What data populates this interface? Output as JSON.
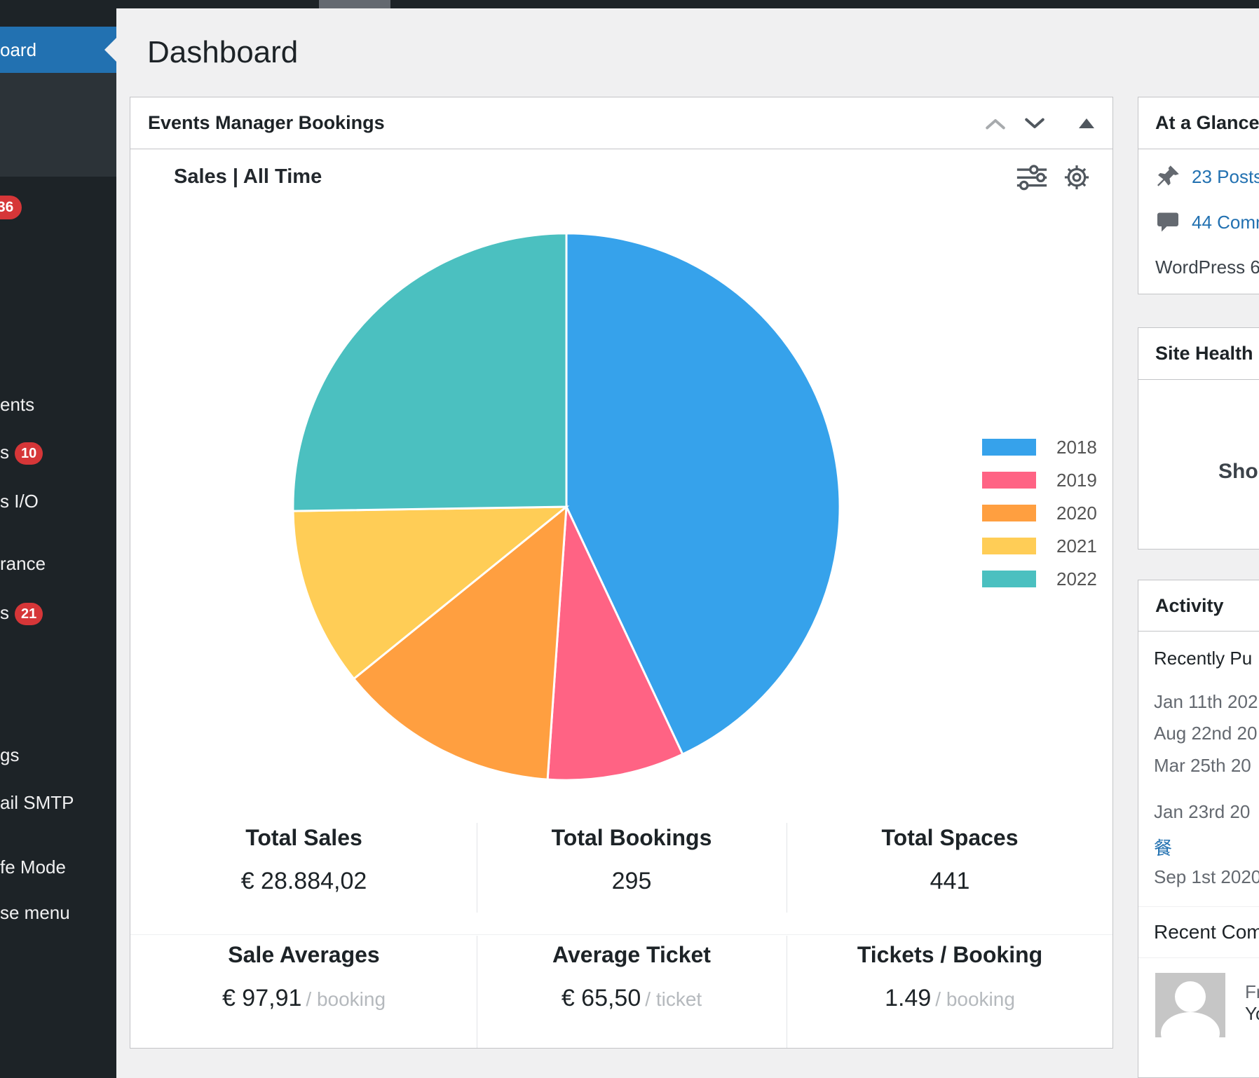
{
  "sidebar": {
    "active_item": "oard",
    "updates_badge": "36",
    "items": [
      {
        "label": "ents",
        "badge": ""
      },
      {
        "label": "s",
        "badge": "10"
      },
      {
        "label": "s I/O",
        "badge": ""
      },
      {
        "label": "rance",
        "badge": ""
      },
      {
        "label": "s",
        "badge": "21"
      },
      {
        "label": "gs",
        "badge": ""
      },
      {
        "label": "ail SMTP",
        "badge": ""
      },
      {
        "label": "fe Mode",
        "badge": ""
      },
      {
        "label": "se menu",
        "badge": ""
      }
    ]
  },
  "page": {
    "title": "Dashboard"
  },
  "widget": {
    "title": "Events Manager Bookings",
    "subtitle": "Sales | All Time",
    "stats": [
      {
        "label": "Total Sales",
        "value": "€ 28.884,02",
        "unit": ""
      },
      {
        "label": "Total Bookings",
        "value": "295",
        "unit": ""
      },
      {
        "label": "Total Spaces",
        "value": "441",
        "unit": ""
      },
      {
        "label": "Sale Averages",
        "value": "€ 97,91",
        "unit": "/ booking"
      },
      {
        "label": "Average Ticket",
        "value": "€ 65,50",
        "unit": "/ ticket"
      },
      {
        "label": "Tickets / Booking",
        "value": "1.49",
        "unit": "/ booking"
      }
    ]
  },
  "chart_data": {
    "type": "pie",
    "title": "Sales | All Time",
    "labels": [
      "2018",
      "2019",
      "2020",
      "2021",
      "2022"
    ],
    "values": [
      43.1,
      8.1,
      13.1,
      10.6,
      25.3
    ],
    "values_unit": "percent-of-total-sales (estimated from slice angles; total sales € 28.884,02)",
    "colors": [
      "#36A2EB",
      "#FF6384",
      "#FF9F40",
      "#FFCD56",
      "#4BC0C0"
    ],
    "legend_position": "right",
    "start_angle_deg": 0,
    "direction": "clockwise",
    "slice_border_color": "#ffffff"
  },
  "panels": {
    "at_a_glance": {
      "title": "At a Glance",
      "posts_link": "23 Posts",
      "comments_link": "44 Comm",
      "version_text": "WordPress 6"
    },
    "site_health": {
      "title": "Site Health",
      "status_text": "Shou"
    },
    "activity": {
      "title": "Activity",
      "recently_published_label": "Recently Pu",
      "entries": [
        {
          "date": "Jan 11th 202"
        },
        {
          "date": "Aug 22nd 20"
        },
        {
          "date": "Mar 25th 20"
        },
        {
          "date": "Jan 23rd 20"
        },
        {
          "date": "Sep 1st 2020"
        }
      ],
      "event_link": "餐",
      "recent_comments_label": "Recent Com",
      "comment_line1": "Fr",
      "comment_line2": "Yo"
    }
  }
}
